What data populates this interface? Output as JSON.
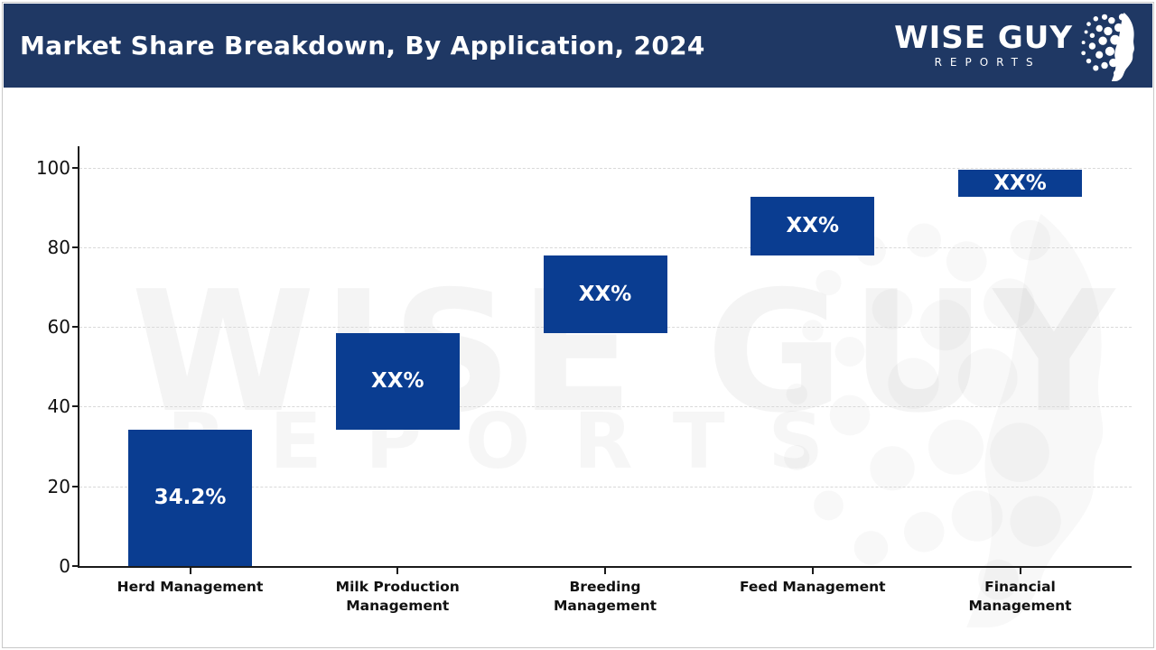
{
  "header": {
    "title": "Market Share Breakdown, By Application, 2024",
    "bg_color": "#1f3864",
    "logo": {
      "line1": "WISE GUY",
      "line2": "REPORTS"
    }
  },
  "watermark": {
    "line1": "WISE GUY",
    "line2": "REPORTS"
  },
  "chart_data": {
    "type": "bar",
    "subtype": "waterfall",
    "title": "Market Share Breakdown, By Application, 2024",
    "categories": [
      [
        "Herd Management"
      ],
      [
        "Milk Production",
        "Management"
      ],
      [
        "Breeding",
        "Management"
      ],
      [
        "Feed Management"
      ],
      [
        "Financial",
        "Management"
      ]
    ],
    "segments": [
      {
        "start": 0,
        "end": 34.2,
        "label": "34.2%"
      },
      {
        "start": 34.2,
        "end": 58.5,
        "label": "XX%"
      },
      {
        "start": 58.5,
        "end": 78.0,
        "label": "XX%"
      },
      {
        "start": 78.0,
        "end": 92.7,
        "label": "XX%"
      },
      {
        "start": 92.7,
        "end": 99.5,
        "label": "XX%"
      }
    ],
    "xlabel": "",
    "ylabel": "",
    "ylim": [
      0,
      100
    ],
    "yticks": [
      0,
      20,
      40,
      60,
      80,
      100
    ],
    "bar_color": "#0a3d91",
    "grid": {
      "show": true,
      "style": "dashed",
      "color": "#d9d9d9"
    },
    "legend": {
      "show": false
    }
  }
}
